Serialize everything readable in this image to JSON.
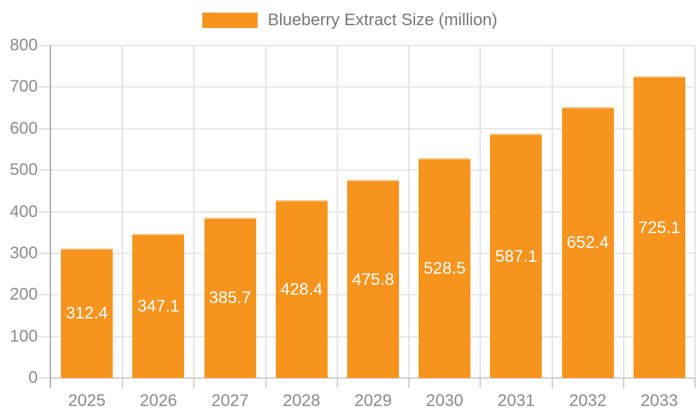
{
  "legend": {
    "label": "Blueberry Extract Size (million)"
  },
  "chart_data": {
    "type": "bar",
    "title": "",
    "xlabel": "",
    "ylabel": "",
    "categories": [
      "2025",
      "2026",
      "2027",
      "2028",
      "2029",
      "2030",
      "2031",
      "2032",
      "2033"
    ],
    "series": [
      {
        "name": "Blueberry Extract Size (million)",
        "values": [
          312.4,
          347.1,
          385.7,
          428.4,
          475.8,
          528.5,
          587.1,
          652.4,
          725.1
        ]
      }
    ],
    "value_labels": [
      "312.4",
      "347.1",
      "385.7",
      "428.4",
      "475.8",
      "528.5",
      "587.1",
      "652.4",
      "725.1"
    ],
    "ylim": [
      0,
      800
    ],
    "yticks": [
      0,
      100,
      200,
      300,
      400,
      500,
      600,
      700,
      800
    ],
    "grid": true,
    "legend_position": "top",
    "colors": {
      "bar": "#F7941E",
      "bar_value_label": "#FFFFFF",
      "axis_label": "#8A8A8A",
      "legend_text": "#76777A",
      "grid_line": "#E5E5E5",
      "y_axis_line": "#ABABAB",
      "x_axis_line": "#CDCDCD",
      "background": "#FFFFFF"
    }
  }
}
